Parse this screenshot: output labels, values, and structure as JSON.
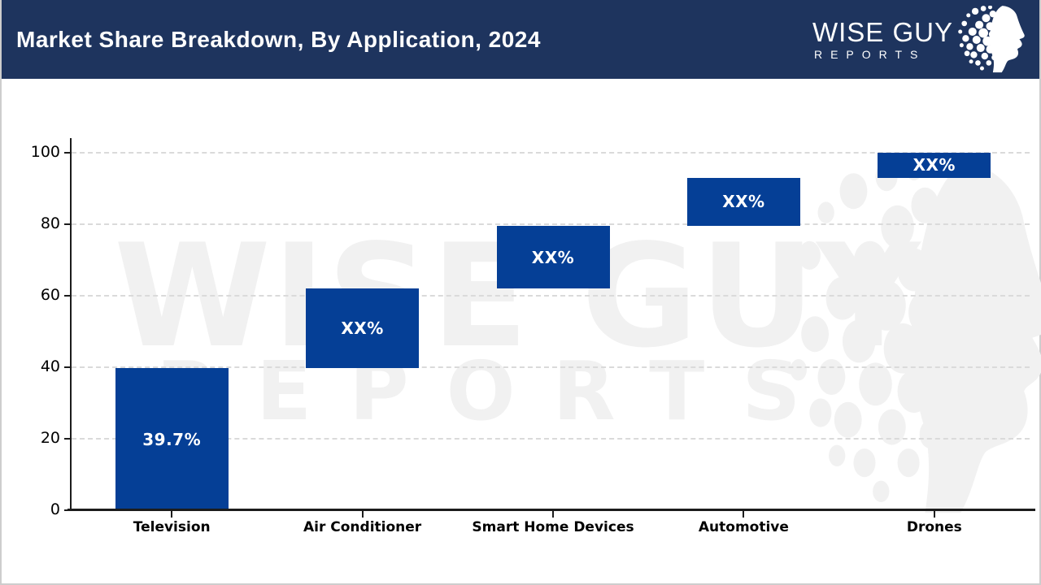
{
  "header": {
    "title": "Market Share Breakdown, By Application, 2024",
    "bg_color": "#1e345e",
    "logo": {
      "line1": "WISE GUY",
      "line2": "REPORTS"
    }
  },
  "watermark": {
    "line1": "WISE GUY",
    "line2": "REPORTS"
  },
  "chart_data": {
    "type": "bar",
    "subtype": "waterfall",
    "title": "Market Share Breakdown, By Application, 2024",
    "categories": [
      "Television",
      "Air Conditioner",
      "Smart Home Devices",
      "Automotive",
      "Drones"
    ],
    "segments": [
      {
        "category": "Television",
        "start": 0,
        "end": 39.7,
        "label": "39.7%"
      },
      {
        "category": "Air Conditioner",
        "start": 39.7,
        "end": 62.0,
        "label": "XX%"
      },
      {
        "category": "Smart Home Devices",
        "start": 62.0,
        "end": 79.5,
        "label": "XX%"
      },
      {
        "category": "Automotive",
        "start": 79.5,
        "end": 93.0,
        "label": "XX%"
      },
      {
        "category": "Drones",
        "start": 93.0,
        "end": 100.0,
        "label": "XX%"
      }
    ],
    "y_ticks": [
      0,
      20,
      40,
      60,
      80,
      100
    ],
    "ylim": [
      0,
      104
    ],
    "xlabel": "",
    "ylabel": "",
    "grid": "horizontal-dashed",
    "legend": null,
    "bar_color": "#053f96",
    "bar_label_color": "#ffffff",
    "value_labels_redacted": true
  }
}
